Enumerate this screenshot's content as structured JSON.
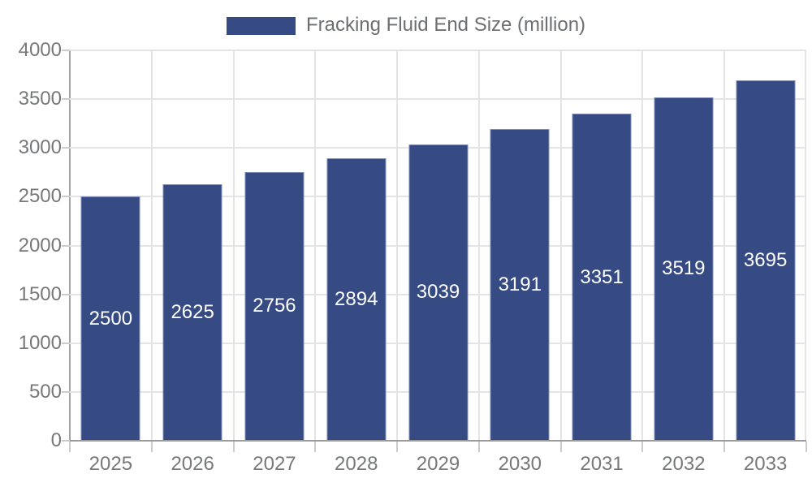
{
  "chart_data": {
    "type": "bar",
    "title": "",
    "legend": [
      "Fracking Fluid End Size (million)"
    ],
    "legend_position": "top-center",
    "categories": [
      "2025",
      "2026",
      "2027",
      "2028",
      "2029",
      "2030",
      "2031",
      "2032",
      "2033"
    ],
    "series": [
      {
        "name": "Fracking Fluid End Size (million)",
        "values": [
          2500,
          2625,
          2756,
          2894,
          3039,
          3191,
          3351,
          3519,
          3695
        ]
      }
    ],
    "xlabel": "",
    "ylabel": "",
    "ylim": [
      0,
      4000
    ],
    "yticks": [
      0,
      500,
      1000,
      1500,
      2000,
      2500,
      3000,
      3500,
      4000
    ],
    "grid": true,
    "bar_labels_visible": true,
    "colors": {
      "bar_fill": "#364a84",
      "bar_border": "#7f8cbb",
      "bar_label_text": "#ffffff",
      "gridline": "#e4e4e4",
      "axis_line": "#9b9b9b",
      "tick": "#cccccc",
      "axis_text": "#76787a",
      "legend_text": "#6c6f72"
    }
  }
}
